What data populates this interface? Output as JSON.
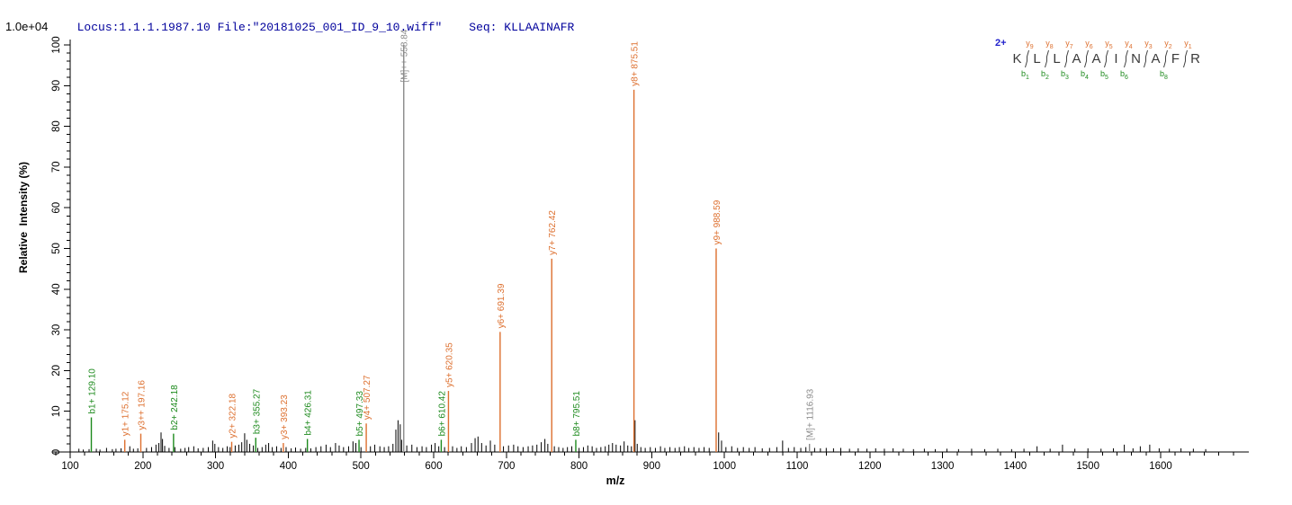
{
  "header": {
    "locus_file": "Locus:1.1.1.1987.10 File:\"20181025_001_ID_9_10.wiff\"",
    "seq": "Seq: KLLAAINAFR"
  },
  "chart_data": {
    "type": "bar",
    "subtype": "mass-spectrum-stick-plot",
    "title": "",
    "xlabel": "m/z",
    "ylabel": "Relative  Intensity (%)",
    "y_scale_note": "1.0e+04",
    "xlim": [
      75,
      1720
    ],
    "ylim": [
      0,
      100
    ],
    "x_major_ticks": [
      100,
      200,
      300,
      400,
      500,
      600,
      700,
      800,
      900,
      1000,
      1100,
      1200,
      1300,
      1400,
      1500,
      1600
    ],
    "x_minor_tick_step": 20,
    "y_major_ticks": [
      0,
      10,
      20,
      30,
      40,
      50,
      60,
      70,
      80,
      90,
      100
    ],
    "y_minor_tick_step": 2,
    "grid": false,
    "legend": "none",
    "colors": {
      "b_series": "#1d8a1d",
      "y_series": "#dd6f2e",
      "precursor": "#8a8a8a",
      "noise": "#000000",
      "axis": "#000000"
    },
    "labeled_peaks": [
      {
        "ion": "b1+",
        "mz": 129.1,
        "intensity": 8.5,
        "series": "b",
        "label": "b1+ 129.10"
      },
      {
        "ion": "y1+",
        "mz": 175.12,
        "intensity": 3.0,
        "series": "y",
        "label": "y1+ 175.12"
      },
      {
        "ion": "y3++",
        "mz": 197.16,
        "intensity": 4.5,
        "series": "y",
        "label": "y3++ 197.16"
      },
      {
        "ion": "b2+",
        "mz": 242.18,
        "intensity": 4.5,
        "series": "b",
        "label": "b2+ 242.18"
      },
      {
        "ion": "y2+",
        "mz": 322.18,
        "intensity": 2.5,
        "series": "y",
        "label": "y2+ 322.18"
      },
      {
        "ion": "b3+",
        "mz": 355.27,
        "intensity": 3.5,
        "series": "b",
        "label": "b3+ 355.27"
      },
      {
        "ion": "y3+",
        "mz": 393.23,
        "intensity": 2.2,
        "series": "y",
        "label": "y3+ 393.23"
      },
      {
        "ion": "b4+",
        "mz": 426.31,
        "intensity": 3.2,
        "series": "b",
        "label": "b4+ 426.31"
      },
      {
        "ion": "b5+",
        "mz": 497.33,
        "intensity": 3.0,
        "series": "b",
        "label": "b5+ 497.33"
      },
      {
        "ion": "y4+",
        "mz": 507.27,
        "intensity": 7.0,
        "series": "y",
        "label": "y4+ 507.27"
      },
      {
        "ion": "[M]++",
        "mz": 558.84,
        "intensity": 100.0,
        "series": "precursor",
        "label": "[M]++ 558.84"
      },
      {
        "ion": "b6+",
        "mz": 610.42,
        "intensity": 3.0,
        "series": "b",
        "label": "b6+ 610.42"
      },
      {
        "ion": "y5+",
        "mz": 620.35,
        "intensity": 15.0,
        "series": "y",
        "label": "y5+ 620.35"
      },
      {
        "ion": "y6+",
        "mz": 691.39,
        "intensity": 29.5,
        "series": "y",
        "label": "y6+ 691.39"
      },
      {
        "ion": "y7+",
        "mz": 762.42,
        "intensity": 47.5,
        "series": "y",
        "label": "y7+ 762.42"
      },
      {
        "ion": "b8+",
        "mz": 795.51,
        "intensity": 3.0,
        "series": "b",
        "label": "b8+ 795.51"
      },
      {
        "ion": "y8+",
        "mz": 875.51,
        "intensity": 89.0,
        "series": "y",
        "label": "y8+ 875.51"
      },
      {
        "ion": "y9+",
        "mz": 988.59,
        "intensity": 50.0,
        "series": "y",
        "label": "y9+ 988.59"
      },
      {
        "ion": "[M]+",
        "mz": 1116.93,
        "intensity": 2.0,
        "series": "precursor",
        "label": "[M]+ 1116.93"
      }
    ],
    "unlabeled_peaks": [
      [
        112,
        0.8
      ],
      [
        118,
        0.6
      ],
      [
        126,
        0.7
      ],
      [
        136,
        0.8
      ],
      [
        141,
        0.6
      ],
      [
        150,
        1.0
      ],
      [
        158,
        0.7
      ],
      [
        163,
        0.8
      ],
      [
        170,
        0.9
      ],
      [
        182,
        1.4
      ],
      [
        187,
        0.8
      ],
      [
        193,
        0.9
      ],
      [
        205,
        1.0
      ],
      [
        212,
        1.2
      ],
      [
        218,
        1.8
      ],
      [
        222,
        2.2
      ],
      [
        225,
        4.8
      ],
      [
        227,
        3.2
      ],
      [
        230,
        1.5
      ],
      [
        236,
        1.0
      ],
      [
        244,
        1.2
      ],
      [
        252,
        0.8
      ],
      [
        258,
        1.0
      ],
      [
        263,
        1.2
      ],
      [
        270,
        1.4
      ],
      [
        276,
        0.9
      ],
      [
        283,
        1.0
      ],
      [
        290,
        1.2
      ],
      [
        296,
        2.8
      ],
      [
        299,
        2.0
      ],
      [
        304,
        1.2
      ],
      [
        310,
        1.0
      ],
      [
        316,
        1.4
      ],
      [
        320,
        1.2
      ],
      [
        327,
        1.6
      ],
      [
        332,
        1.8
      ],
      [
        336,
        2.4
      ],
      [
        340,
        4.6
      ],
      [
        343,
        3.0
      ],
      [
        347,
        2.0
      ],
      [
        352,
        1.6
      ],
      [
        358,
        1.0
      ],
      [
        364,
        1.2
      ],
      [
        369,
        1.8
      ],
      [
        373,
        2.2
      ],
      [
        378,
        1.2
      ],
      [
        384,
        1.4
      ],
      [
        390,
        1.0
      ],
      [
        397,
        1.2
      ],
      [
        404,
        0.9
      ],
      [
        410,
        1.1
      ],
      [
        417,
        0.8
      ],
      [
        424,
        1.0
      ],
      [
        431,
        0.9
      ],
      [
        438,
        1.2
      ],
      [
        445,
        1.4
      ],
      [
        452,
        1.8
      ],
      [
        458,
        1.2
      ],
      [
        465,
        2.2
      ],
      [
        470,
        1.6
      ],
      [
        476,
        1.2
      ],
      [
        483,
        1.4
      ],
      [
        489,
        2.6
      ],
      [
        493,
        2.2
      ],
      [
        500,
        1.2
      ],
      [
        513,
        1.4
      ],
      [
        519,
        1.8
      ],
      [
        526,
        1.4
      ],
      [
        532,
        1.2
      ],
      [
        538,
        1.4
      ],
      [
        544,
        2.0
      ],
      [
        548,
        5.5
      ],
      [
        551,
        7.8
      ],
      [
        554,
        6.8
      ],
      [
        556,
        3.0
      ],
      [
        563,
        1.6
      ],
      [
        570,
        1.8
      ],
      [
        577,
        1.2
      ],
      [
        584,
        1.4
      ],
      [
        590,
        1.2
      ],
      [
        597,
        1.8
      ],
      [
        602,
        2.2
      ],
      [
        607,
        1.4
      ],
      [
        615,
        1.2
      ],
      [
        626,
        1.4
      ],
      [
        632,
        1.0
      ],
      [
        638,
        1.4
      ],
      [
        645,
        1.2
      ],
      [
        652,
        2.2
      ],
      [
        657,
        3.4
      ],
      [
        661,
        3.8
      ],
      [
        666,
        2.2
      ],
      [
        672,
        1.6
      ],
      [
        678,
        2.8
      ],
      [
        684,
        1.8
      ],
      [
        696,
        1.4
      ],
      [
        703,
        1.6
      ],
      [
        710,
        1.8
      ],
      [
        716,
        1.4
      ],
      [
        723,
        1.2
      ],
      [
        730,
        1.4
      ],
      [
        736,
        1.6
      ],
      [
        742,
        1.8
      ],
      [
        748,
        2.4
      ],
      [
        753,
        3.2
      ],
      [
        757,
        2.0
      ],
      [
        766,
        1.4
      ],
      [
        772,
        1.2
      ],
      [
        778,
        1.0
      ],
      [
        784,
        1.2
      ],
      [
        790,
        1.4
      ],
      [
        800,
        1.0
      ],
      [
        806,
        1.2
      ],
      [
        812,
        1.6
      ],
      [
        818,
        1.4
      ],
      [
        824,
        1.0
      ],
      [
        830,
        1.2
      ],
      [
        836,
        1.4
      ],
      [
        841,
        1.8
      ],
      [
        846,
        2.2
      ],
      [
        851,
        1.8
      ],
      [
        857,
        1.6
      ],
      [
        862,
        2.6
      ],
      [
        867,
        1.6
      ],
      [
        872,
        1.4
      ],
      [
        877,
        7.8
      ],
      [
        880,
        2.0
      ],
      [
        885,
        1.2
      ],
      [
        891,
        1.0
      ],
      [
        898,
        1.2
      ],
      [
        905,
        1.0
      ],
      [
        912,
        1.4
      ],
      [
        918,
        1.0
      ],
      [
        925,
        1.2
      ],
      [
        932,
        1.0
      ],
      [
        938,
        1.2
      ],
      [
        945,
        1.4
      ],
      [
        951,
        1.0
      ],
      [
        958,
        1.2
      ],
      [
        965,
        1.0
      ],
      [
        972,
        1.2
      ],
      [
        979,
        1.0
      ],
      [
        992,
        4.8
      ],
      [
        996,
        2.8
      ],
      [
        1002,
        1.2
      ],
      [
        1010,
        1.4
      ],
      [
        1018,
        1.0
      ],
      [
        1026,
        1.2
      ],
      [
        1034,
        1.0
      ],
      [
        1042,
        1.2
      ],
      [
        1052,
        0.9
      ],
      [
        1062,
        1.0
      ],
      [
        1072,
        1.2
      ],
      [
        1080,
        2.8
      ],
      [
        1088,
        1.0
      ],
      [
        1096,
        1.2
      ],
      [
        1105,
        1.0
      ],
      [
        1112,
        1.2
      ],
      [
        1124,
        1.0
      ],
      [
        1132,
        0.9
      ],
      [
        1140,
        1.0
      ],
      [
        1150,
        0.9
      ],
      [
        1160,
        1.0
      ],
      [
        1172,
        0.8
      ],
      [
        1184,
        0.9
      ],
      [
        1196,
        0.8
      ],
      [
        1208,
        0.9
      ],
      [
        1220,
        0.8
      ],
      [
        1232,
        0.9
      ],
      [
        1246,
        0.8
      ],
      [
        1260,
        0.7
      ],
      [
        1275,
        0.8
      ],
      [
        1290,
        0.7
      ],
      [
        1306,
        0.8
      ],
      [
        1322,
        0.7
      ],
      [
        1340,
        0.8
      ],
      [
        1358,
        0.7
      ],
      [
        1376,
        0.8
      ],
      [
        1395,
        0.7
      ],
      [
        1412,
        0.8
      ],
      [
        1430,
        1.4
      ],
      [
        1448,
        0.8
      ],
      [
        1465,
        1.8
      ],
      [
        1482,
        0.8
      ],
      [
        1500,
        0.9
      ],
      [
        1518,
        0.8
      ],
      [
        1535,
        0.9
      ],
      [
        1550,
        1.8
      ],
      [
        1562,
        0.9
      ],
      [
        1572,
        1.4
      ],
      [
        1585,
        1.8
      ],
      [
        1598,
        0.9
      ],
      [
        1612,
        0.8
      ],
      [
        1628,
        0.9
      ],
      [
        1645,
        0.8
      ],
      [
        1662,
        0.7
      ]
    ]
  },
  "peptide_diagram": {
    "charge": "2+",
    "residues": [
      "K",
      "L",
      "L",
      "A",
      "A",
      "I",
      "N",
      "A",
      "F",
      "R"
    ],
    "gaps": [
      {
        "y": "y9",
        "b": "b1"
      },
      {
        "y": "y8",
        "b": "b2"
      },
      {
        "y": "y7",
        "b": "b3"
      },
      {
        "y": "y6",
        "b": "b4"
      },
      {
        "y": "y5",
        "b": "b5"
      },
      {
        "y": "y4",
        "b": "b6"
      },
      {
        "y": "y3",
        "b": null
      },
      {
        "y": "y2",
        "b": "b8"
      },
      {
        "y": "y1",
        "b": null
      }
    ]
  }
}
